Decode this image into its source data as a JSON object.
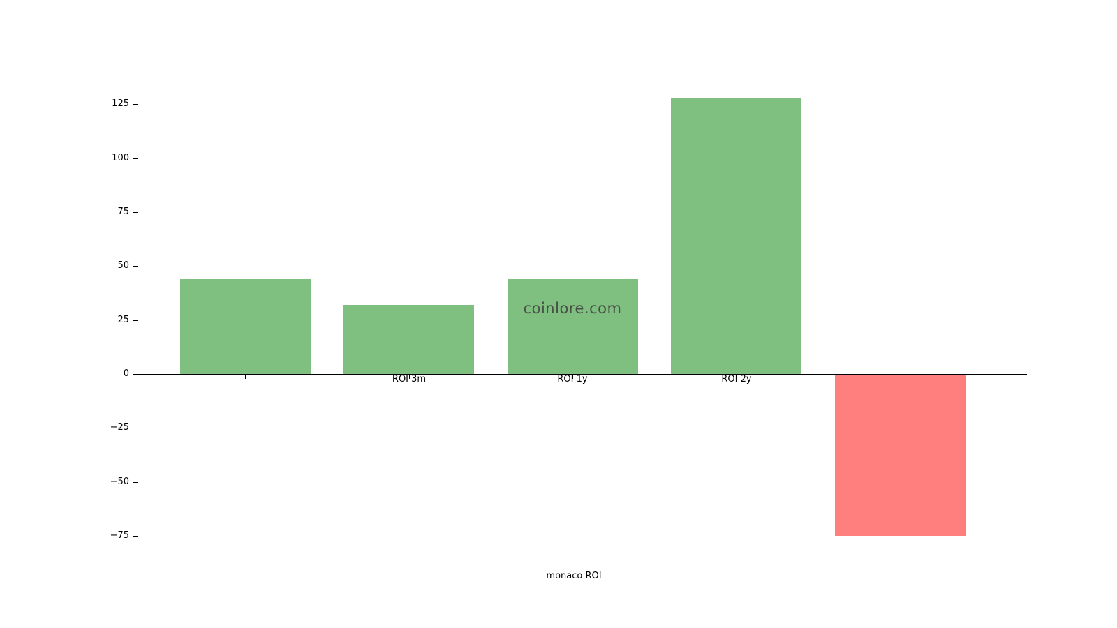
{
  "figure": {
    "background": "#ffffff"
  },
  "chart_data": {
    "type": "bar",
    "title": "",
    "xlabel": "monaco ROI",
    "ylabel": "",
    "watermark": "coinlore.com",
    "categories": [
      "",
      "ROI 3m",
      "ROI 1y",
      "ROI 2y",
      ""
    ],
    "values": [
      44,
      32,
      44,
      128,
      -75
    ],
    "series": [
      {
        "name": "monaco ROI",
        "values": [
          44,
          32,
          44,
          128,
          -75
        ]
      }
    ],
    "bar_colors": [
      "#7fbf7f",
      "#7fbf7f",
      "#7fbf7f",
      "#7fbf7f",
      "#ff7f7f"
    ],
    "positive_color": "#7fbf7f",
    "negative_color": "#ff7f7f",
    "y_ticks": [
      125,
      100,
      75,
      50,
      25,
      0,
      -25,
      -50,
      -75
    ],
    "y_tick_labels": [
      "125",
      "100",
      "75",
      "50",
      "25",
      "0",
      "−25",
      "−50",
      "−75"
    ],
    "ylim": [
      -80,
      139
    ],
    "grid": false,
    "legend": null,
    "axis_color": "#000000",
    "text_color": "#000000",
    "watermark_color": "#444444"
  }
}
